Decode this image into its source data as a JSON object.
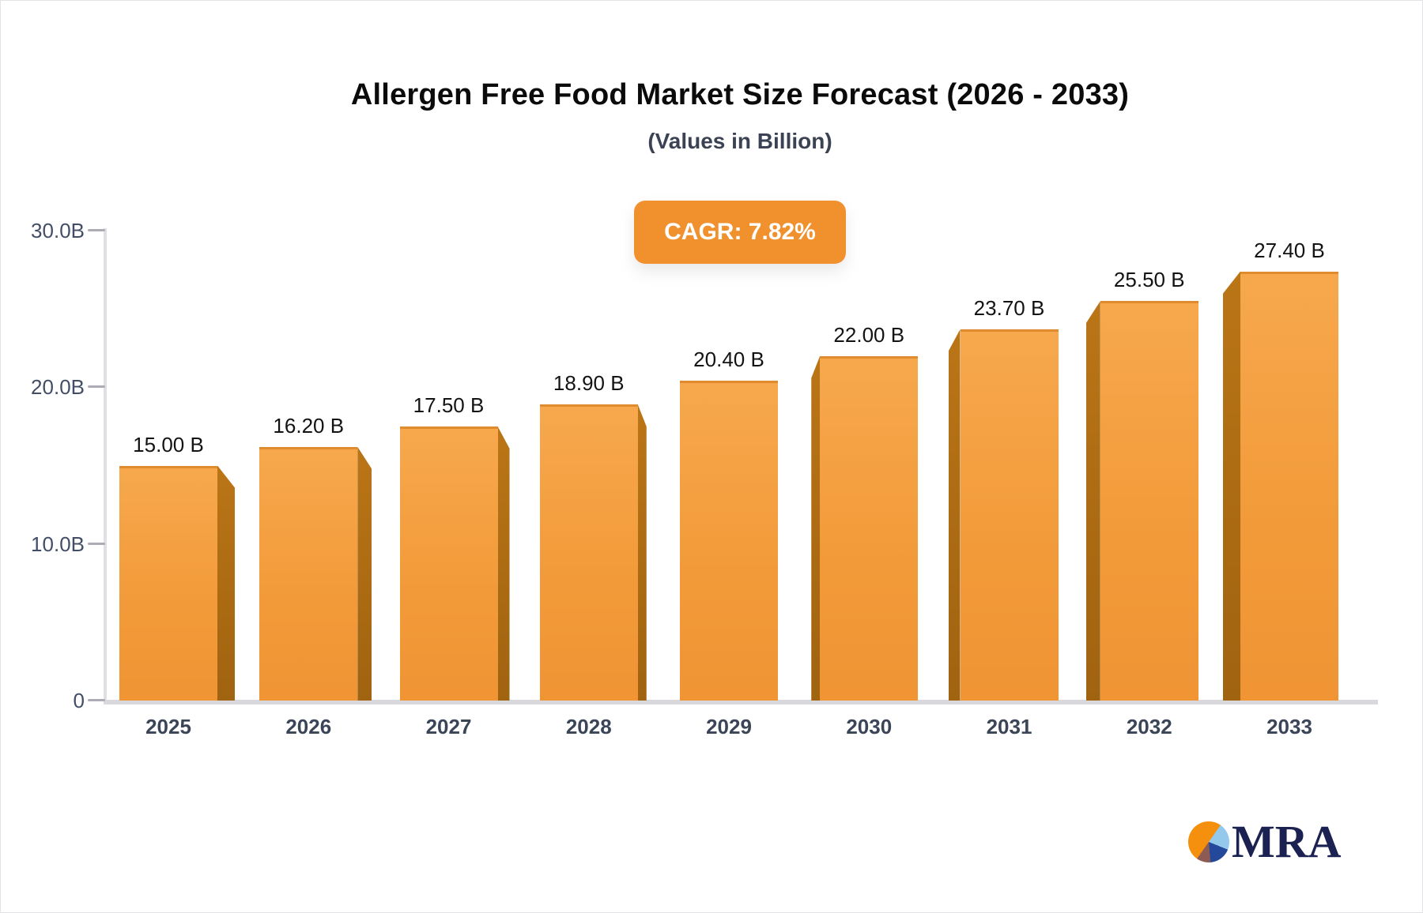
{
  "chart": {
    "title": "Allergen Free Food Market Size Forecast (2026 - 2033)",
    "subtitle": "(Values in Billion)",
    "cagr_label": "CAGR: 7.82%",
    "accent_color": "#F0912E"
  },
  "chart_data": {
    "type": "bar",
    "title": "Allergen Free Food Market Size Forecast (2026 - 2033)",
    "subtitle": "(Values in Billion)",
    "annotation": "CAGR: 7.82%",
    "categories": [
      "2025",
      "2026",
      "2027",
      "2028",
      "2029",
      "2030",
      "2031",
      "2032",
      "2033"
    ],
    "values": [
      15.0,
      16.2,
      17.5,
      18.9,
      20.4,
      22.0,
      23.7,
      25.5,
      27.4
    ],
    "value_labels": [
      "15.00 B",
      "16.20 B",
      "17.50 B",
      "18.90 B",
      "20.40 B",
      "22.00 B",
      "23.70 B",
      "25.50 B",
      "27.40 B"
    ],
    "xlabel": "",
    "ylabel": "",
    "ylim": [
      0,
      30
    ],
    "y_ticks": [
      {
        "value": 30,
        "label": "30.0B"
      },
      {
        "value": 20,
        "label": "20.0B"
      },
      {
        "value": 10,
        "label": "10.0B"
      },
      {
        "value": 0,
        "label": "0"
      }
    ],
    "grid": false,
    "legend": false,
    "bar_style": "3d-extruded",
    "bar_color_top": "#F7A84D",
    "bar_color_bottom": "#F09434",
    "bar_side_color": "#A96A15"
  },
  "logo": {
    "text": "MRA",
    "pie_icon_colors": [
      "#F5900F",
      "#94C9EC",
      "#24499A",
      "#8E5B54"
    ]
  }
}
